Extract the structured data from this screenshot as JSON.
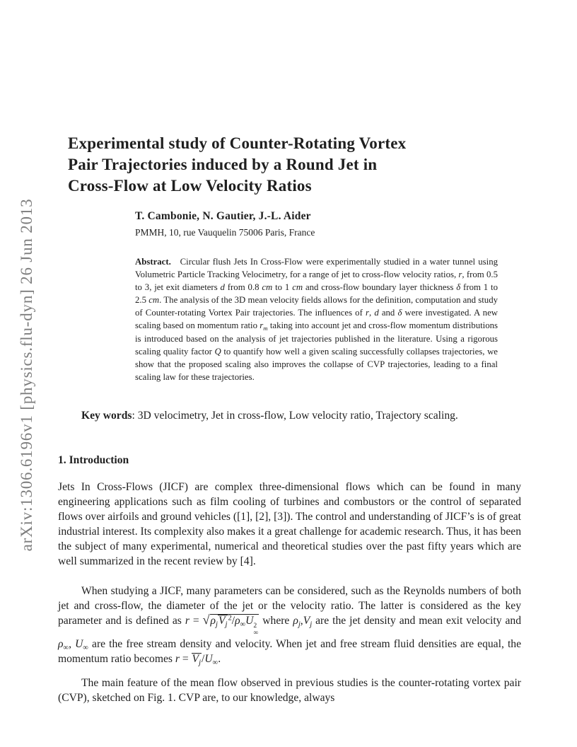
{
  "page": {
    "background": "#ffffff",
    "text_color": "#1f1f1f",
    "watermark_color": "#7d7d7d"
  },
  "watermark": {
    "text": "arXiv:1306.6196v1  [physics.flu-dyn]  26 Jun 2013"
  },
  "header": {
    "title_lines": [
      "Experimental study of Counter-Rotating Vortex",
      "Pair Trajectories induced by a Round Jet in",
      "Cross-Flow at Low Velocity Ratios"
    ],
    "authors": "T. Cambonie, N. Gautier, J.-L. Aider",
    "affiliation": "PMMH, 10, rue Vauquelin 75006 Paris, France"
  },
  "abstract": {
    "segments": [
      {
        "t": "Abstract.",
        "s": "b"
      },
      " Circular flush Jets In Cross-Flow were experimentally studied in a water tunnel using Volumetric Particle Tracking Velocimetry, for a range of jet to cross-flow velocity ratios, ",
      {
        "t": "r",
        "s": "i"
      },
      ", from 0.5 to 3, jet exit diameters ",
      {
        "t": "d",
        "s": "i"
      },
      " from 0.8 ",
      {
        "t": "cm",
        "s": "i"
      },
      " to 1 ",
      {
        "t": "cm",
        "s": "i"
      },
      " and cross-flow boundary layer thickness ",
      {
        "t": "δ",
        "s": "i"
      },
      " from 1 to 2.5 ",
      {
        "t": "cm",
        "s": "i"
      },
      ". The analysis of the 3D mean velocity fields allows for the definition, computation and study of Counter-rotating Vortex Pair trajectories. The influences of ",
      {
        "t": "r",
        "s": "i"
      },
      ", ",
      {
        "t": "d",
        "s": "i"
      },
      " and ",
      {
        "t": "δ",
        "s": "i"
      },
      " were investigated. A new scaling based on momentum ratio ",
      {
        "t": "r",
        "s": "i"
      },
      {
        "t": "m",
        "s": "sub"
      },
      " taking into account jet and cross-flow momentum distributions is introduced based on the analysis of jet trajectories published in the literature. Using a rigorous scaling quality factor ",
      {
        "t": "Q",
        "s": "i"
      },
      " to quantify how well a given scaling successfully collapses trajectories, we show that the proposed scaling also improves the collapse of CVP trajectories, leading to a final scaling law for these trajectories."
    ]
  },
  "keywords": {
    "segments": [
      {
        "t": "Key words",
        "s": "b"
      },
      ":  3D velocimetry, Jet in cross-flow, Low velocity ratio, Trajectory scaling."
    ]
  },
  "introduction": {
    "heading": "1. Introduction",
    "paragraphs": {
      "p1": [
        "Jets In Cross-Flows (JICF) are complex three-dimensional flows which can be found in many engineering applications such as film cooling of turbines and combustors or the control of separated flows over airfoils and ground vehicles ([1], [2], [3]). The control and understanding of JICF’s is of great industrial interest. Its complexity also makes it a great challenge for academic research. Thus, it has been the subject of many experimental, numerical and theoretical studies over the past fifty years which are well summarized in the recent review by [4]."
      ],
      "p2": [
        "When studying a JICF, many parameters can be considered, such as the Reynolds numbers of both jet and cross-flow, the diameter of the jet or the velocity ratio. The latter is considered as the key parameter and is defined as ",
        {
          "t": "r",
          "s": "i"
        },
        " = ",
        {
          "t": "√",
          "s": "rad"
        },
        {
          "s": "ol",
          "seg": [
            {
              "t": "ρ",
              "s": "i"
            },
            {
              "t": "j",
              "s": "sub"
            },
            {
              "s": "ol",
              "seg": [
                {
                  "t": "V",
                  "s": "i"
                },
                {
                  "t": "j",
                  "s": "sub"
                }
              ]
            },
            {
              "t": "2",
              "s": "sup"
            },
            {
              "t": "/"
            },
            {
              "t": "ρ",
              "s": "i"
            },
            {
              "t": "∞",
              "s": "sub"
            },
            {
              "t": "U",
              "s": "i"
            },
            {
              "s": "stack",
              "seg": [
                {
                  "t": "2"
                },
                {
                  "t": "∞"
                }
              ]
            }
          ]
        },
        " where ",
        {
          "t": "ρ",
          "s": "i"
        },
        {
          "t": "j",
          "s": "sub"
        },
        ",",
        {
          "t": "V",
          "s": "i"
        },
        {
          "t": "j",
          "s": "sub"
        },
        " are the jet density and mean exit velocity and ",
        {
          "t": "ρ",
          "s": "i"
        },
        {
          "t": "∞",
          "s": "sub"
        },
        ", ",
        {
          "t": "U",
          "s": "i"
        },
        {
          "t": "∞",
          "s": "sub"
        },
        " are the free stream density and velocity. When jet and free stream fluid densities are equal, the momentum ratio becomes ",
        {
          "t": "r",
          "s": "i"
        },
        " = ",
        {
          "s": "ol",
          "seg": [
            {
              "t": "V",
              "s": "i"
            },
            {
              "t": "j",
              "s": "sub"
            }
          ]
        },
        {
          "t": "/"
        },
        {
          "t": "U",
          "s": "i"
        },
        {
          "t": "∞",
          "s": "sub"
        },
        "."
      ],
      "p3": [
        "The main feature of the mean flow observed in previous studies is the counter-rotating vortex pair (CVP), sketched on Fig. 1. CVP are, to our knowledge, always"
      ]
    }
  }
}
